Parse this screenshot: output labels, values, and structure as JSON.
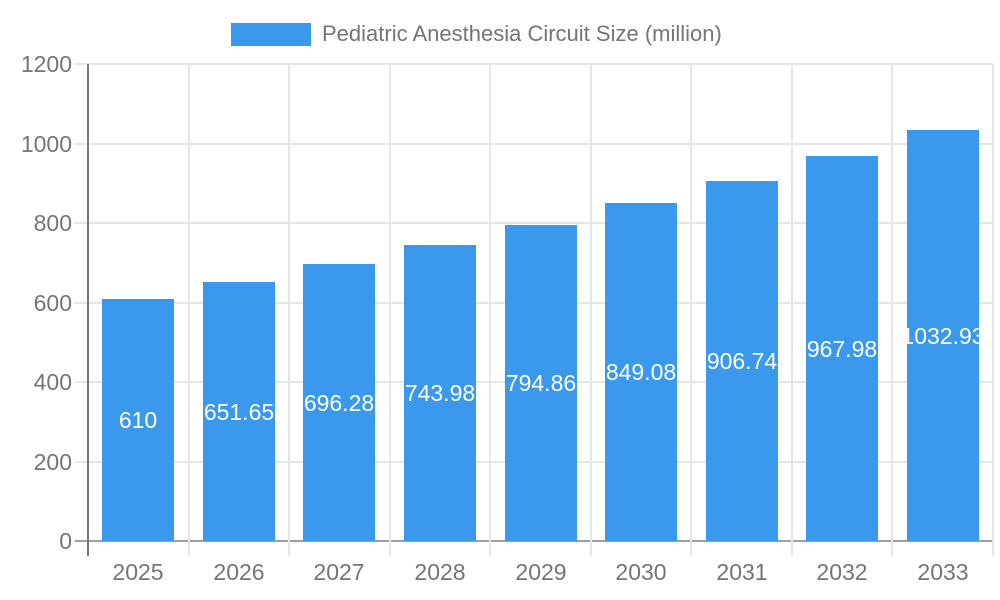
{
  "legend": {
    "label": "Pediatric Anesthesia Circuit Size (million)",
    "swatch_color": "#3a99ec"
  },
  "chart_data": {
    "type": "bar",
    "title": "Pediatric Anesthesia Circuit Size (million)",
    "categories": [
      "2025",
      "2026",
      "2027",
      "2028",
      "2029",
      "2030",
      "2031",
      "2032",
      "2033"
    ],
    "values": [
      610,
      651.65,
      696.28,
      743.98,
      794.86,
      849.08,
      906.74,
      967.98,
      1032.93
    ],
    "value_labels": [
      "610",
      "651.65",
      "696.28",
      "743.98",
      "794.86",
      "849.08",
      "906.74",
      "967.98",
      "1032.93"
    ],
    "xlabel": "",
    "ylabel": "",
    "ylim": [
      0,
      1200
    ],
    "yticks": [
      0,
      200,
      400,
      600,
      800,
      1000,
      1200
    ],
    "grid": true,
    "legend_position": "top",
    "colors": {
      "bar": "#3a99ec",
      "bar_label": "#ffffff",
      "axis_text": "#757575",
      "gridline": "#e6e6e6",
      "baseline": "#9e9e9e",
      "axis_line": "#757575",
      "background": "#ffffff"
    }
  }
}
